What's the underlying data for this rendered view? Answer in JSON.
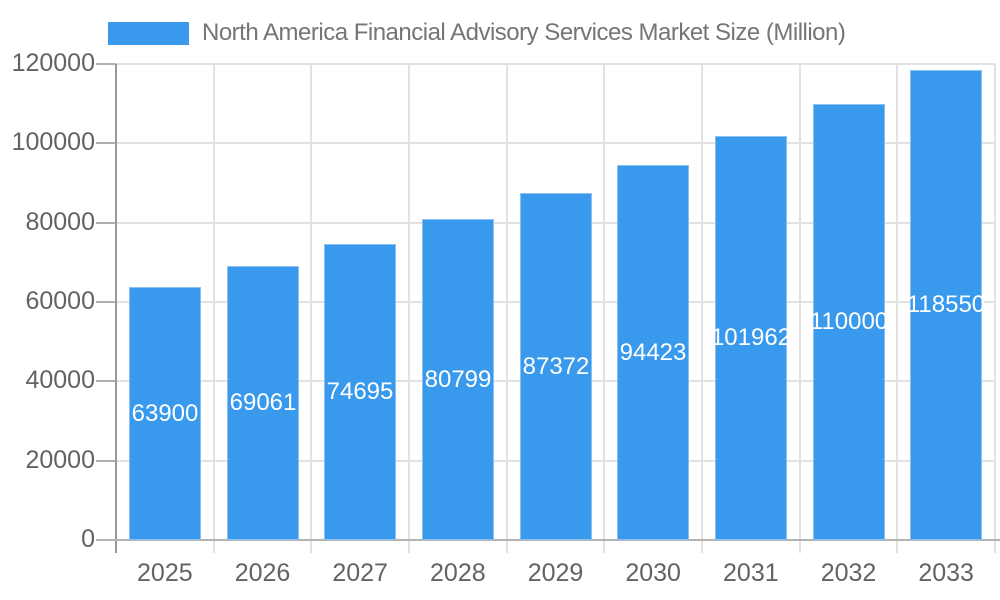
{
  "chart_data": {
    "type": "bar",
    "title": "",
    "legend": "North America Financial Advisory Services Market Size (Million)",
    "legend_position": "top-left",
    "categories": [
      "2025",
      "2026",
      "2027",
      "2028",
      "2029",
      "2030",
      "2031",
      "2032",
      "2033"
    ],
    "values": [
      63900,
      69061,
      74695,
      80799,
      87372,
      94423,
      101962,
      110000,
      118550
    ],
    "xlabel": "",
    "ylabel": "",
    "ylim": [
      0,
      120000
    ],
    "ytick_step": 20000,
    "ytick_labels": [
      "0",
      "20000",
      "40000",
      "60000",
      "80000",
      "100000",
      "120000"
    ],
    "grid": true,
    "value_labels": "inside-center-white",
    "colors": {
      "bar": "#3999EC",
      "bar_edge": "#8CC0F2",
      "grid": "#E2E2E2",
      "axis_y": "#999999",
      "axis_x": "#B3B3B3",
      "tick": "#B0B0B0",
      "axis_text": "#636363",
      "legend_text": "#757575",
      "value_text": "#FFFFFF"
    }
  }
}
